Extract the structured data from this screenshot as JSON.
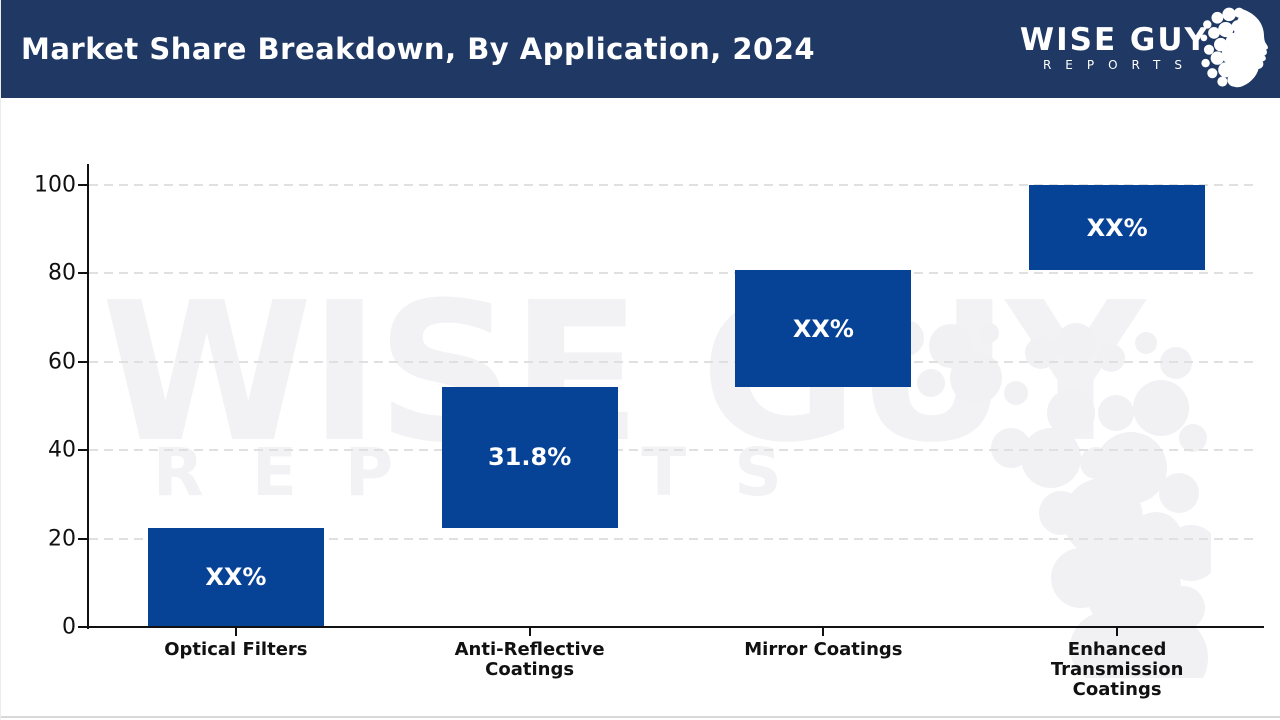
{
  "header": {
    "title": "Market Share Breakdown, By Application, 2024",
    "logo": {
      "line1": "WISE GUY",
      "line2": "REPORTS"
    }
  },
  "watermark": {
    "line1": "WISE GUY",
    "line2": "REPORTS"
  },
  "colors": {
    "header_bg": "#1f3864",
    "bar": "#064296",
    "bar_label_text": "#ffffff",
    "axis": "#111111",
    "gridline": "#e0e0e0",
    "watermark": "#f2f2f5",
    "title_text": "#ffffff"
  },
  "chart_data": {
    "type": "bar",
    "subtype": "floating-waterfall",
    "title": "Market Share Breakdown, By Application, 2024",
    "xlabel": "",
    "ylabel": "",
    "categories": [
      "Optical Filters",
      "Anti-Reflective Coatings",
      "Mirror Coatings",
      "Enhanced Transmission Coatings"
    ],
    "category_lines": [
      [
        "Optical Filters"
      ],
      [
        "Anti-Reflective",
        "Coatings"
      ],
      [
        "Mirror Coatings"
      ],
      [
        "Enhanced",
        "Transmission",
        "Coatings"
      ]
    ],
    "bars": [
      {
        "start": 0,
        "end": 22.5,
        "value": 22.5,
        "label": "XX%"
      },
      {
        "start": 22.5,
        "end": 54.3,
        "value": 31.8,
        "label": "31.8%"
      },
      {
        "start": 54.3,
        "end": 80.7,
        "value": 26.4,
        "label": "XX%"
      },
      {
        "start": 80.7,
        "end": 100,
        "value": 19.3,
        "label": "XX%"
      }
    ],
    "yticks": [
      0,
      20,
      40,
      60,
      80,
      100
    ],
    "ylim": [
      0,
      105
    ],
    "grid": "horizontal-dashed",
    "legend": "none"
  }
}
